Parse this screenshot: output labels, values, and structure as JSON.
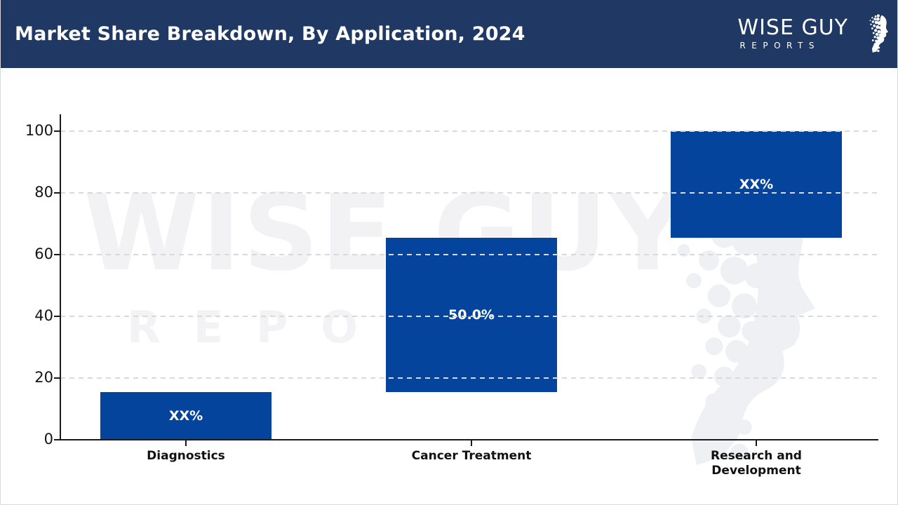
{
  "header": {
    "title": "Market Share Breakdown, By Application, 2024",
    "background": "#1f3864",
    "logo": {
      "word": "WISE GUY",
      "reports": "REPORTS"
    }
  },
  "watermark": {
    "word": "WISE GUY",
    "reports": "REPORTS"
  },
  "chart_data": {
    "type": "bar",
    "variant": "waterfall",
    "title": "Market Share Breakdown, By Application, 2024",
    "categories": [
      "Diagnostics",
      "Cancer Treatment",
      "Research and Development"
    ],
    "bars": [
      {
        "category": "Diagnostics",
        "start": 0,
        "end": 15.5,
        "value_label": "XX%"
      },
      {
        "category": "Cancer Treatment",
        "start": 15.5,
        "end": 65.5,
        "value_label": "50.0%"
      },
      {
        "category": "Research and Development",
        "start": 65.5,
        "end": 100,
        "value_label": "XX%"
      }
    ],
    "yticks": [
      0,
      20,
      40,
      60,
      80,
      100
    ],
    "ylim": [
      0,
      100
    ],
    "grid": "horizontal-dashed",
    "legend": "none",
    "bar_color": "#04449c",
    "bar_label_color": "#ffffff",
    "axis_color": "#1a1a1a",
    "gridline_color": "#d9d9d9"
  }
}
